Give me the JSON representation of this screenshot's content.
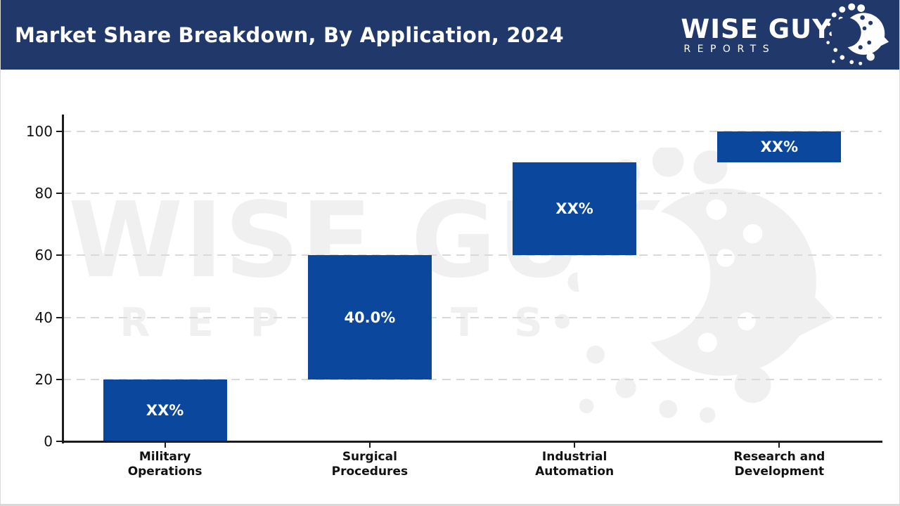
{
  "header": {
    "title": "Market Share Breakdown, By Application, 2024",
    "logo": {
      "line1": "WISE GUY",
      "line2": "REPORTS"
    }
  },
  "watermark": {
    "line1": "WISE GUY",
    "line2": "REPORTS"
  },
  "chart_data": {
    "type": "bar",
    "subtype": "waterfall",
    "title": "Market Share Breakdown, By Application, 2024",
    "categories": [
      [
        "Military",
        "Operations"
      ],
      [
        "Surgical",
        "Procedures"
      ],
      [
        "Industrial",
        "Automation"
      ],
      [
        "Research and",
        "Development"
      ]
    ],
    "segments": [
      {
        "label": "XX%",
        "start": 0,
        "end": 20
      },
      {
        "label": "40.0%",
        "start": 20,
        "end": 60
      },
      {
        "label": "XX%",
        "start": 60,
        "end": 90
      },
      {
        "label": "XX%",
        "start": 90,
        "end": 100
      }
    ],
    "yticks": [
      0,
      20,
      40,
      60,
      80,
      100
    ],
    "ylim": [
      0,
      105
    ],
    "grid": "dashed-horizontal",
    "legend": "none",
    "bar_color": "#0b479d"
  },
  "colors": {
    "header_bg": "#21386b",
    "bar": "#0b479d",
    "grid": "#d9d9d9",
    "axis": "#1c1c1c",
    "text": "#111111",
    "bar_label": "#ffffff",
    "watermark": "#f0f0f0"
  }
}
